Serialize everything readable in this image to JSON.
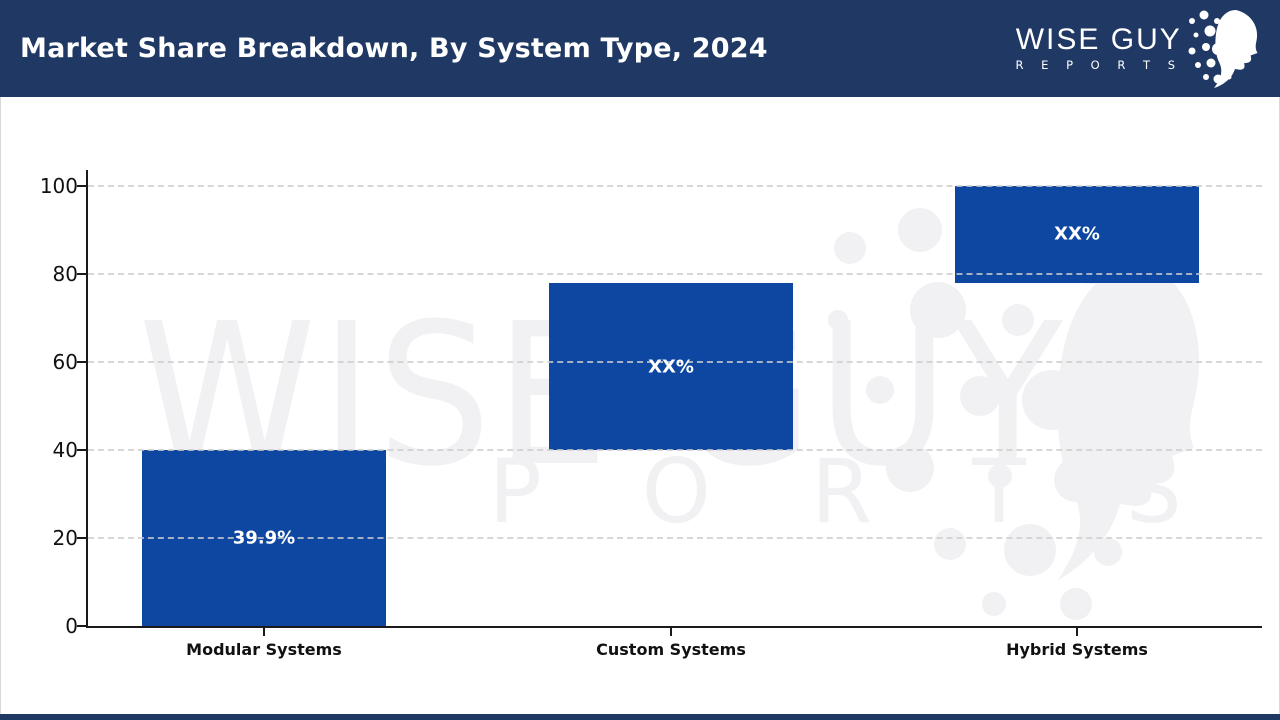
{
  "header": {
    "title": "Market Share Breakdown, By System Type, 2024",
    "background_color": "#1F3864",
    "logo": {
      "line1": "WISE GUY",
      "line2": "R E P O R T S",
      "face_icon": "dotted-face-profile"
    }
  },
  "watermark": {
    "line1": "WISE GUY",
    "line2": "R E P O R T S"
  },
  "chart_data": {
    "type": "bar",
    "subtype": "waterfall",
    "title": "Market Share Breakdown, By System Type, 2024",
    "categories": [
      "Modular Systems",
      "Custom Systems",
      "Hybrid Systems"
    ],
    "series": [
      {
        "name": "Market share (%)",
        "segments": [
          {
            "category": "Modular Systems",
            "start": 0,
            "end": 39.9,
            "label": "39.9%"
          },
          {
            "category": "Custom Systems",
            "start": 39.9,
            "end": 78,
            "label": "XX%"
          },
          {
            "category": "Hybrid Systems",
            "start": 78,
            "end": 100,
            "label": "XX%"
          }
        ]
      }
    ],
    "xlabel": "",
    "ylabel": "",
    "yticks": [
      0,
      20,
      40,
      60,
      80,
      100
    ],
    "ylim": [
      0,
      104
    ],
    "grid": "horizontal-dashed-over-bars",
    "legend": "none",
    "bar_color": "#0D47A1",
    "bar_label_color": "#FFFFFF"
  },
  "footer": {
    "background_color": "#1F3864"
  }
}
